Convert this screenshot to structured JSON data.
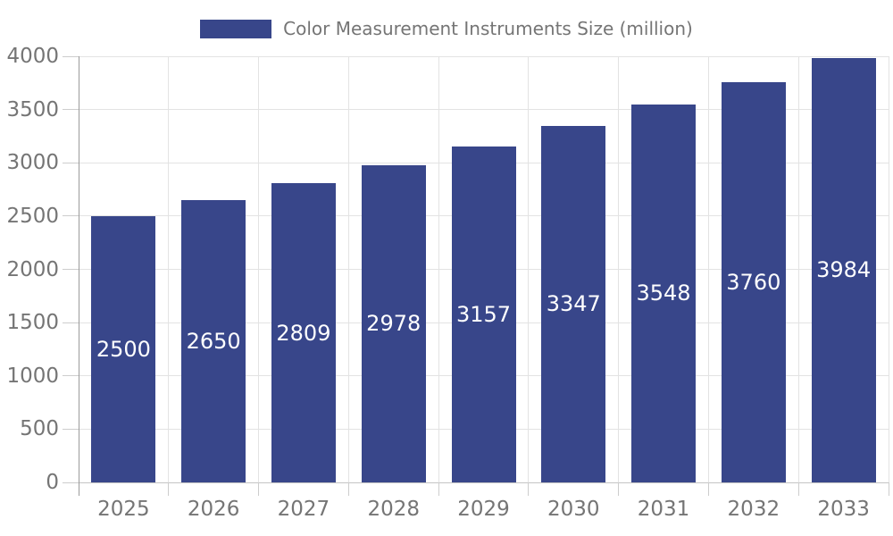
{
  "chart_data": {
    "type": "bar",
    "title": "Color Measurement Instruments Size (million)",
    "categories": [
      "2025",
      "2026",
      "2027",
      "2028",
      "2029",
      "2030",
      "2031",
      "2032",
      "2033"
    ],
    "values": [
      2500,
      2650,
      2809,
      2978,
      3157,
      3347,
      3548,
      3760,
      3984
    ],
    "xlabel": "",
    "ylabel": "",
    "ylim": [
      0,
      4000
    ],
    "yticks": [
      0,
      500,
      1000,
      1500,
      2000,
      2500,
      3000,
      3500,
      4000
    ],
    "grid": true,
    "legend_position": "top-center",
    "bar_label_position": "inside-center",
    "colors": {
      "bar": "#38468A",
      "bar_label": "#FFFFFF",
      "axis_text": "#757575",
      "gridline": "#E3E3E3",
      "axis_line": "#9B9B9B",
      "tick": "#CDCDCD",
      "zero_line": "#C4C4C4",
      "background": "#FFFFFF"
    }
  }
}
